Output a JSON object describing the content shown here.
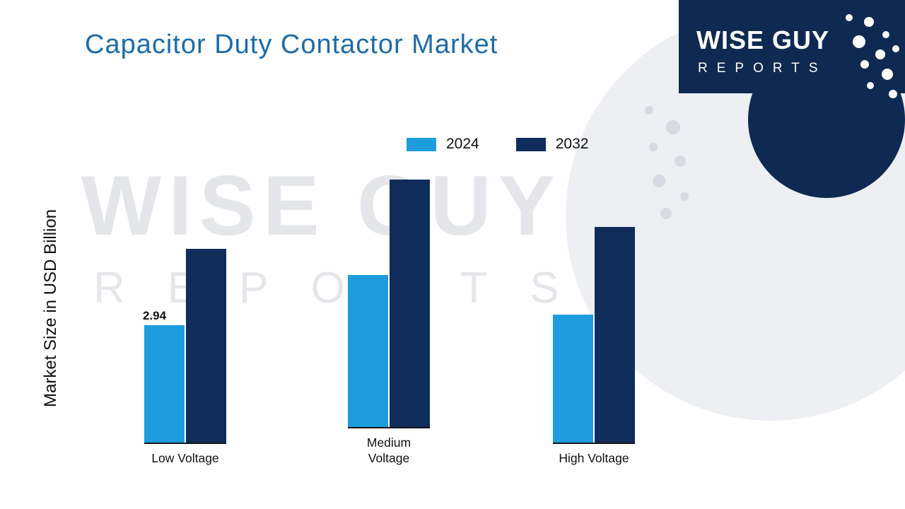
{
  "page": {
    "title": "Capacitor Duty Contactor Market"
  },
  "logo": {
    "name_line": "WISE GUY",
    "reports_line": "REPORTS"
  },
  "watermark": {
    "line1": "WISE GUY",
    "line2": "REPORTS"
  },
  "chart_data": {
    "type": "bar",
    "title": "Capacitor Duty Contactor Market",
    "ylabel": "Market Size in USD Billion",
    "xlabel": "",
    "categories": [
      "Low Voltage",
      "Medium Voltage",
      "High Voltage"
    ],
    "series": [
      {
        "name": "2024",
        "color": "#1d9dde",
        "values": [
          2.94,
          3.8,
          3.2
        ]
      },
      {
        "name": "2032",
        "color": "#0f2c5a",
        "values": [
          4.85,
          6.2,
          5.4
        ]
      }
    ],
    "annotations": [
      {
        "category": "Low Voltage",
        "series": "2024",
        "text": "2.94"
      }
    ],
    "ylim": [
      0,
      7
    ],
    "grid": false,
    "legend_position": "top-center"
  },
  "colors": {
    "title": "#1b6da9",
    "axis": "#161616",
    "watermark": "#e4e6ea",
    "logo_background": "#0e2a52",
    "backdrop_circle": "#edeff2"
  }
}
